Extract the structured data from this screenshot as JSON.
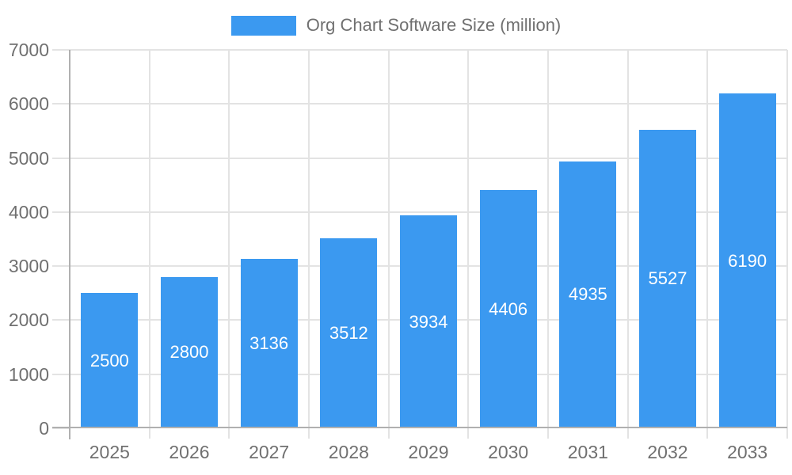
{
  "chart_data": {
    "type": "bar",
    "title": "Org Chart Software Size (million)",
    "legend": {
      "label": "Org Chart Software Size (million)",
      "position": "top-center"
    },
    "categories": [
      "2025",
      "2026",
      "2027",
      "2028",
      "2029",
      "2030",
      "2031",
      "2032",
      "2033"
    ],
    "series": [
      {
        "name": "Org Chart Software Size (million)",
        "values": [
          2500,
          2800,
          3136,
          3512,
          3934,
          4406,
          4935,
          5527,
          6190
        ]
      }
    ],
    "xlabel": "",
    "ylabel": "",
    "ylim": [
      0,
      7000
    ],
    "y_ticks": [
      0,
      1000,
      2000,
      3000,
      4000,
      5000,
      6000,
      7000
    ],
    "grid": true,
    "value_labels": "centered-inside-bars",
    "colors": {
      "bar": "#3b99f0",
      "value_label": "#ffffff",
      "axis_text": "#707070",
      "grid_line": "#e3e3e3",
      "axis_line": "#b0b0b0",
      "background": "#ffffff"
    }
  }
}
